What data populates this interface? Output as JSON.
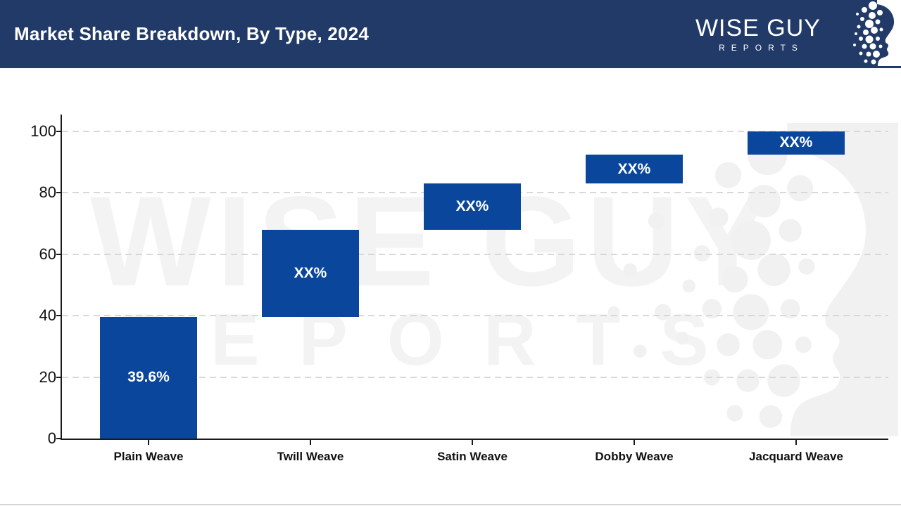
{
  "header": {
    "title": "Market Share Breakdown, By Type, 2024",
    "bg_color": "#213a68",
    "logo": {
      "line1": "WISE GUY",
      "line2": "REPORTS"
    }
  },
  "watermark": {
    "line1": "WISE GUY",
    "line2": "REPORTS"
  },
  "chart_data": {
    "type": "bar",
    "subtype": "waterfall",
    "title": "Market Share Breakdown, By Type, 2024",
    "categories": [
      "Plain Weave",
      "Twill Weave",
      "Satin Weave",
      "Dobby Weave",
      "Jacquard Weave"
    ],
    "segments": [
      {
        "category": "Plain Weave",
        "label": "39.6%",
        "start": 0,
        "end": 39.6
      },
      {
        "category": "Twill Weave",
        "label": "XX%",
        "start": 39.6,
        "end": 68
      },
      {
        "category": "Satin Weave",
        "label": "XX%",
        "start": 68,
        "end": 83
      },
      {
        "category": "Dobby Weave",
        "label": "XX%",
        "start": 83,
        "end": 92.5
      },
      {
        "category": "Jacquard Weave",
        "label": "XX%",
        "start": 92.5,
        "end": 100
      }
    ],
    "xlabel": "",
    "ylabel": "",
    "ylim": [
      0,
      100
    ],
    "yticks": [
      0,
      20,
      40,
      60,
      80,
      100
    ],
    "grid": {
      "horizontal": true,
      "style": "dashed",
      "color": "#d8d8d8"
    },
    "legend": "none",
    "bar_color": "#0a479c",
    "bar_label_color": "#ffffff",
    "axis_color": "#1a1a1a"
  }
}
